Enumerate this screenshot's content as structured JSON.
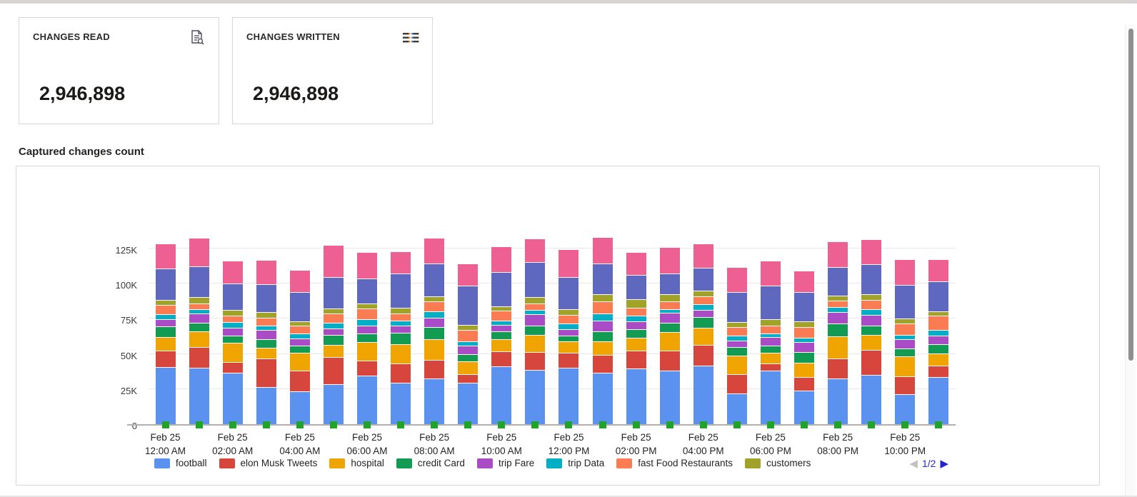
{
  "cards": [
    {
      "title": "CHANGES READ",
      "value": "2,946,898",
      "icon": "document-search-icon"
    },
    {
      "title": "CHANGES WRITTEN",
      "value": "2,946,898",
      "icon": "list-lines-icon"
    }
  ],
  "section_title": "Captured changes count",
  "chart_data": {
    "type": "bar",
    "stacked": true,
    "title": "Captured changes count",
    "bar_count": 24,
    "x_interval": "1 hour",
    "axis_color": "#b3b0ad",
    "grid": true,
    "ylim": [
      0,
      137500
    ],
    "y_ticks": [
      {
        "label": "0",
        "value": 0
      },
      {
        "label": "25K",
        "value": 25000
      },
      {
        "label": "50K",
        "value": 50000
      },
      {
        "label": "75K",
        "value": 75000
      },
      {
        "label": "100K",
        "value": 100000
      },
      {
        "label": "125K",
        "value": 125000
      }
    ],
    "x_labels": [
      {
        "line1": "Feb 25",
        "line2": "12:00 AM"
      },
      {
        "line1": "Feb 25",
        "line2": "02:00 AM"
      },
      {
        "line1": "Feb 25",
        "line2": "04:00 AM"
      },
      {
        "line1": "Feb 25",
        "line2": "06:00 AM"
      },
      {
        "line1": "Feb 25",
        "line2": "08:00 AM"
      },
      {
        "line1": "Feb 25",
        "line2": "10:00 AM"
      },
      {
        "line1": "Feb 25",
        "line2": "12:00 PM"
      },
      {
        "line1": "Feb 25",
        "line2": "02:00 PM"
      },
      {
        "line1": "Feb 25",
        "line2": "04:00 PM"
      },
      {
        "line1": "Feb 25",
        "line2": "06:00 PM"
      },
      {
        "line1": "Feb 25",
        "line2": "08:00 PM"
      },
      {
        "line1": "Feb 25",
        "line2": "10:00 PM"
      }
    ],
    "bars_per_label": 2,
    "base_marker_color": "#1fa32b",
    "series": [
      {
        "id": "series-1",
        "name": "football",
        "color": "#5b92f0",
        "legend_page": 1,
        "values": [
          40000,
          39500,
          36000,
          26000,
          23000,
          28000,
          34000,
          29000,
          32000,
          29000,
          40500,
          38000,
          39500,
          36000,
          39000,
          37500,
          41000,
          21500,
          37500,
          23500,
          32000,
          34500,
          21000,
          33000
        ]
      },
      {
        "id": "series-2",
        "name": "elon Musk Tweets",
        "color": "#d6463c",
        "legend_page": 1,
        "values": [
          12000,
          15000,
          7500,
          20000,
          14500,
          19000,
          10500,
          13500,
          13000,
          6000,
          11000,
          13000,
          11000,
          12500,
          13000,
          14500,
          15000,
          13500,
          5000,
          9500,
          14000,
          18000,
          12500,
          8000
        ]
      },
      {
        "id": "series-3",
        "name": "hospital",
        "color": "#efa400",
        "legend_page": 1,
        "values": [
          9500,
          11000,
          14000,
          8000,
          13000,
          9000,
          13500,
          14000,
          15000,
          9000,
          8500,
          12000,
          8000,
          10000,
          9000,
          13000,
          12000,
          13000,
          8000,
          10000,
          16000,
          10500,
          14000,
          9000
        ]
      },
      {
        "id": "series-4",
        "name": "credit Card",
        "color": "#129b53",
        "legend_page": 1,
        "values": [
          7500,
          6000,
          5000,
          6000,
          5000,
          7000,
          6000,
          8000,
          8500,
          5500,
          5500,
          6500,
          4000,
          7000,
          6000,
          6500,
          7500,
          6500,
          5000,
          8000,
          9000,
          6500,
          6000,
          6500
        ]
      },
      {
        "id": "series-5",
        "name": "trip Fare",
        "color": "#a94cc5",
        "legend_page": 1,
        "values": [
          5000,
          6500,
          5500,
          6500,
          5000,
          4500,
          5500,
          5000,
          6500,
          6000,
          4500,
          8000,
          4500,
          7500,
          5500,
          7000,
          5000,
          4500,
          6000,
          7000,
          8000,
          7500,
          6500,
          6000
        ]
      },
      {
        "id": "series-6",
        "name": "trip Data",
        "color": "#00aec5",
        "legend_page": 1,
        "values": [
          3500,
          3000,
          4000,
          3000,
          3500,
          4000,
          4500,
          3500,
          4500,
          3000,
          3000,
          3000,
          4000,
          5000,
          4000,
          2500,
          4500,
          3500,
          2500,
          3000,
          4000,
          4500,
          3000,
          4000
        ]
      },
      {
        "id": "series-7",
        "name": "fast Food Restaurants",
        "color": "#fb7b52",
        "legend_page": 1,
        "values": [
          7000,
          4500,
          4500,
          5500,
          5500,
          6500,
          8000,
          5000,
          7500,
          8000,
          7000,
          5000,
          6000,
          9000,
          6000,
          6000,
          5500,
          6000,
          5500,
          7500,
          4500,
          6500,
          8000,
          10000
        ]
      },
      {
        "id": "series-8",
        "name": "customers",
        "color": "#a1a329",
        "legend_page": 1,
        "values": [
          3500,
          4500,
          4000,
          4000,
          3000,
          4000,
          3500,
          4500,
          3500,
          3500,
          3500,
          4500,
          4000,
          5000,
          6000,
          5000,
          4000,
          3500,
          4500,
          4000,
          3500,
          4000,
          3500,
          3000
        ]
      },
      {
        "id": "series-9",
        "name": "",
        "color": "#5d68be",
        "legend_page": 2,
        "values": [
          22000,
          21500,
          19000,
          20000,
          21000,
          22000,
          17500,
          24000,
          23000,
          28000,
          24000,
          25000,
          23000,
          22000,
          17000,
          14500,
          16000,
          21500,
          24000,
          21000,
          20000,
          21000,
          24000,
          21500
        ]
      },
      {
        "id": "series-10",
        "name": "",
        "color": "#ee5f92",
        "legend_page": 2,
        "values": [
          18000,
          20500,
          16500,
          17500,
          15500,
          23000,
          19000,
          16000,
          18500,
          15500,
          18500,
          16500,
          20000,
          18500,
          16500,
          19000,
          17500,
          17500,
          18000,
          15000,
          18500,
          18000,
          18500,
          16000
        ]
      }
    ],
    "legend_position": "bottom"
  },
  "legend": {
    "pagination": {
      "label": "1/2",
      "prev_enabled": false,
      "next_enabled": true
    }
  }
}
